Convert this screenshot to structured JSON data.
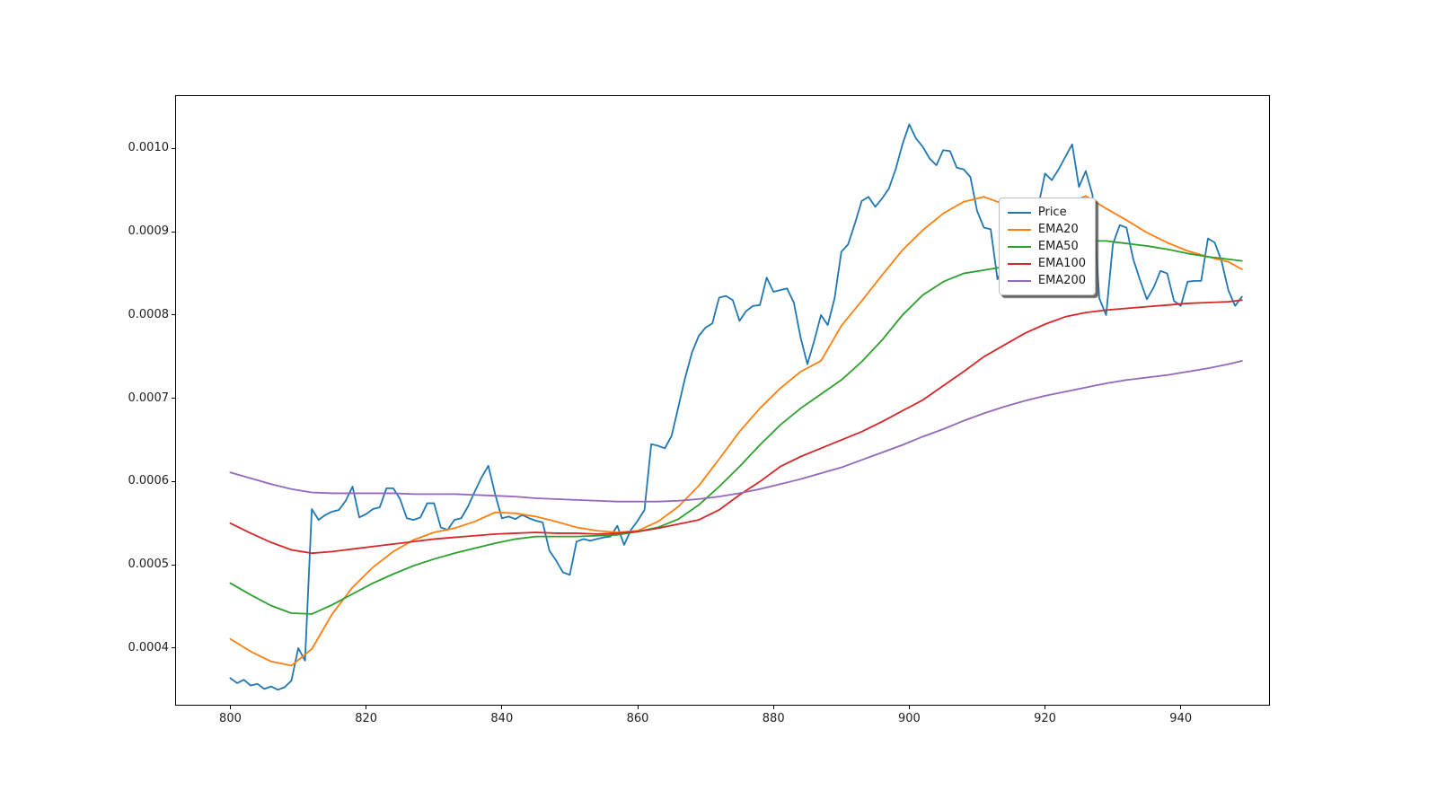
{
  "figure": {
    "background": "#ffffff"
  },
  "chart_data": {
    "type": "line",
    "title": "",
    "xlabel": "",
    "ylabel": "",
    "grid": false,
    "legend_position": "upper right",
    "value_scale": 0.0001,
    "xlim": [
      792,
      953
    ],
    "ylim_scaled": [
      3.32,
      10.63
    ],
    "x_ticks": {
      "values": [
        800,
        820,
        840,
        860,
        880,
        900,
        920,
        940
      ],
      "labels": [
        "800",
        "820",
        "840",
        "860",
        "880",
        "900",
        "920",
        "940"
      ]
    },
    "y_ticks": {
      "values_scaled": [
        4,
        5,
        6,
        7,
        8,
        9,
        10
      ],
      "labels": [
        "0.0004",
        "0.0005",
        "0.0006",
        "0.0007",
        "0.0008",
        "0.0009",
        "0.0010"
      ]
    },
    "series": [
      {
        "name": "Price",
        "color": "#1f77b4",
        "x": [
          800,
          801,
          802,
          803,
          804,
          805,
          806,
          807,
          808,
          809,
          810,
          811,
          812,
          813,
          814,
          815,
          816,
          817,
          818,
          819,
          820,
          821,
          822,
          823,
          824,
          825,
          826,
          827,
          828,
          829,
          830,
          831,
          832,
          833,
          834,
          835,
          836,
          837,
          838,
          839,
          840,
          841,
          842,
          843,
          844,
          845,
          846,
          847,
          848,
          849,
          850,
          851,
          852,
          853,
          854,
          855,
          856,
          857,
          858,
          859,
          860,
          861,
          862,
          863,
          864,
          865,
          866,
          867,
          868,
          869,
          870,
          871,
          872,
          873,
          874,
          875,
          876,
          877,
          878,
          879,
          880,
          881,
          882,
          883,
          884,
          885,
          886,
          887,
          888,
          889,
          890,
          891,
          892,
          893,
          894,
          895,
          896,
          897,
          898,
          899,
          900,
          901,
          902,
          903,
          904,
          905,
          906,
          907,
          908,
          909,
          910,
          911,
          912,
          913,
          914,
          915,
          916,
          917,
          918,
          919,
          920,
          921,
          922,
          923,
          924,
          925,
          926,
          927,
          928,
          929,
          930,
          931,
          932,
          933,
          934,
          935,
          936,
          937,
          938,
          939,
          940,
          941,
          942,
          943,
          944,
          945,
          946,
          947,
          948,
          949
        ],
        "y_scaled": [
          3.64,
          3.58,
          3.62,
          3.55,
          3.57,
          3.51,
          3.54,
          3.5,
          3.53,
          3.61,
          4.0,
          3.85,
          5.67,
          5.54,
          5.6,
          5.64,
          5.66,
          5.77,
          5.94,
          5.57,
          5.61,
          5.67,
          5.69,
          5.92,
          5.92,
          5.79,
          5.56,
          5.54,
          5.57,
          5.74,
          5.74,
          5.45,
          5.42,
          5.54,
          5.56,
          5.7,
          5.88,
          6.05,
          6.19,
          5.85,
          5.56,
          5.58,
          5.55,
          5.6,
          5.56,
          5.53,
          5.51,
          5.17,
          5.05,
          4.91,
          4.88,
          5.28,
          5.31,
          5.29,
          5.31,
          5.33,
          5.34,
          5.47,
          5.24,
          5.42,
          5.53,
          5.66,
          6.45,
          6.43,
          6.4,
          6.55,
          6.9,
          7.25,
          7.55,
          7.75,
          7.85,
          7.9,
          8.21,
          8.23,
          8.18,
          7.93,
          8.05,
          8.11,
          8.12,
          8.45,
          8.28,
          8.3,
          8.32,
          8.15,
          7.73,
          7.41,
          7.69,
          8.0,
          7.88,
          8.2,
          8.76,
          8.85,
          9.1,
          9.37,
          9.42,
          9.3,
          9.4,
          9.52,
          9.75,
          10.05,
          10.29,
          10.12,
          10.02,
          9.88,
          9.8,
          9.98,
          9.97,
          9.77,
          9.75,
          9.66,
          9.25,
          9.05,
          9.03,
          8.43,
          8.6,
          8.73,
          8.8,
          9.14,
          8.96,
          9.3,
          9.7,
          9.62,
          9.75,
          9.9,
          10.05,
          9.54,
          9.73,
          9.44,
          8.2,
          8.0,
          8.85,
          9.08,
          9.05,
          8.67,
          8.42,
          8.19,
          8.33,
          8.53,
          8.5,
          8.17,
          8.11,
          8.4,
          8.41,
          8.41,
          8.92,
          8.87,
          8.65,
          8.3,
          8.11,
          8.22
        ]
      },
      {
        "name": "EMA20",
        "color": "#ff7f0e",
        "x": [
          800,
          803,
          806,
          809,
          812,
          815,
          818,
          821,
          824,
          827,
          830,
          833,
          836,
          839,
          842,
          845,
          848,
          851,
          854,
          857,
          860,
          863,
          866,
          869,
          872,
          875,
          878,
          881,
          884,
          887,
          890,
          893,
          896,
          899,
          902,
          905,
          908,
          911,
          914,
          917,
          920,
          923,
          926,
          929,
          932,
          935,
          938,
          941,
          944,
          947,
          949
        ],
        "y_scaled": [
          4.11,
          3.96,
          3.84,
          3.79,
          3.99,
          4.41,
          4.73,
          4.97,
          5.16,
          5.3,
          5.39,
          5.44,
          5.52,
          5.63,
          5.62,
          5.58,
          5.52,
          5.45,
          5.41,
          5.39,
          5.41,
          5.52,
          5.7,
          5.95,
          6.27,
          6.6,
          6.88,
          7.12,
          7.32,
          7.45,
          7.87,
          8.17,
          8.48,
          8.78,
          9.02,
          9.22,
          9.36,
          9.42,
          9.33,
          9.18,
          9.2,
          9.33,
          9.43,
          9.28,
          9.14,
          8.99,
          8.87,
          8.77,
          8.7,
          8.64,
          8.55
        ]
      },
      {
        "name": "EMA50",
        "color": "#2ca02c",
        "x": [
          800,
          803,
          806,
          809,
          812,
          815,
          818,
          821,
          824,
          827,
          830,
          833,
          836,
          839,
          842,
          845,
          848,
          851,
          854,
          857,
          860,
          863,
          866,
          869,
          872,
          875,
          878,
          881,
          884,
          887,
          890,
          893,
          896,
          899,
          902,
          905,
          908,
          911,
          914,
          917,
          920,
          923,
          926,
          929,
          932,
          935,
          938,
          941,
          944,
          947,
          949
        ],
        "y_scaled": [
          4.78,
          4.64,
          4.51,
          4.42,
          4.41,
          4.52,
          4.65,
          4.78,
          4.89,
          4.99,
          5.07,
          5.14,
          5.2,
          5.26,
          5.31,
          5.34,
          5.34,
          5.34,
          5.35,
          5.36,
          5.4,
          5.45,
          5.55,
          5.72,
          5.94,
          6.18,
          6.44,
          6.68,
          6.88,
          7.05,
          7.22,
          7.44,
          7.7,
          8.0,
          8.24,
          8.4,
          8.5,
          8.54,
          8.58,
          8.62,
          8.69,
          8.78,
          8.89,
          8.89,
          8.86,
          8.83,
          8.79,
          8.74,
          8.7,
          8.67,
          8.65
        ]
      },
      {
        "name": "EMA100",
        "color": "#d62728",
        "x": [
          800,
          803,
          806,
          809,
          812,
          815,
          818,
          821,
          824,
          827,
          830,
          833,
          836,
          839,
          842,
          845,
          848,
          851,
          854,
          857,
          860,
          863,
          866,
          869,
          872,
          875,
          878,
          881,
          884,
          887,
          890,
          893,
          896,
          899,
          902,
          905,
          908,
          911,
          914,
          917,
          920,
          923,
          926,
          929,
          932,
          935,
          938,
          941,
          944,
          947,
          949
        ],
        "y_scaled": [
          5.5,
          5.38,
          5.27,
          5.18,
          5.14,
          5.16,
          5.19,
          5.22,
          5.25,
          5.28,
          5.31,
          5.33,
          5.35,
          5.37,
          5.38,
          5.39,
          5.38,
          5.38,
          5.37,
          5.38,
          5.4,
          5.44,
          5.49,
          5.54,
          5.66,
          5.84,
          6.0,
          6.18,
          6.3,
          6.4,
          6.5,
          6.6,
          6.72,
          6.85,
          6.98,
          7.15,
          7.32,
          7.5,
          7.64,
          7.78,
          7.89,
          7.98,
          8.03,
          8.06,
          8.08,
          8.1,
          8.12,
          8.14,
          8.15,
          8.16,
          8.18
        ]
      },
      {
        "name": "EMA200",
        "color": "#9467bd",
        "x": [
          800,
          803,
          806,
          809,
          812,
          815,
          818,
          821,
          824,
          827,
          830,
          833,
          836,
          839,
          842,
          845,
          848,
          851,
          854,
          857,
          860,
          863,
          866,
          869,
          872,
          875,
          878,
          881,
          884,
          887,
          890,
          893,
          896,
          899,
          902,
          905,
          908,
          911,
          914,
          917,
          920,
          923,
          926,
          929,
          932,
          935,
          938,
          941,
          944,
          947,
          949
        ],
        "y_scaled": [
          6.11,
          6.04,
          5.97,
          5.91,
          5.87,
          5.86,
          5.86,
          5.86,
          5.86,
          5.85,
          5.85,
          5.85,
          5.84,
          5.83,
          5.82,
          5.8,
          5.79,
          5.78,
          5.77,
          5.76,
          5.76,
          5.76,
          5.77,
          5.79,
          5.82,
          5.86,
          5.91,
          5.97,
          6.03,
          6.1,
          6.17,
          6.26,
          6.35,
          6.44,
          6.54,
          6.63,
          6.73,
          6.82,
          6.9,
          6.97,
          7.03,
          7.08,
          7.13,
          7.18,
          7.22,
          7.25,
          7.28,
          7.32,
          7.36,
          7.41,
          7.45
        ]
      }
    ]
  }
}
